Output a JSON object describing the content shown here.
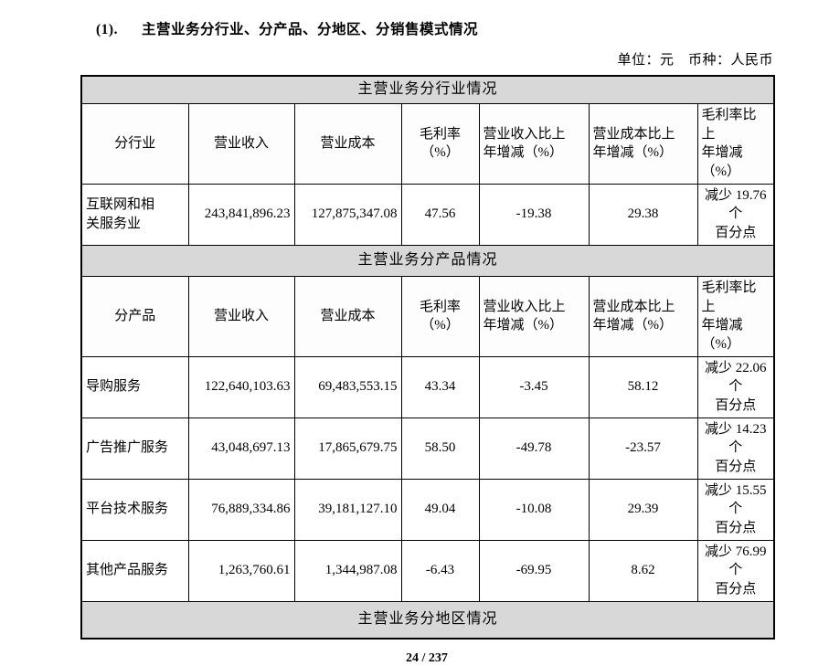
{
  "document": {
    "heading_index": "(1).",
    "heading_text": "主营业务分行业、分产品、分地区、分销售模式情况",
    "unit_note": "单位：元　币种：人民币",
    "page_number": "24 / 237"
  },
  "table": {
    "sections": [
      {
        "band": "主营业务分行业情况",
        "headers": [
          "分行业",
          "营业收入",
          "营业成本",
          "毛利率\n（%）",
          "营业收入比上\n年增减（%）",
          "营业成本比上\n年增减（%）",
          "毛利率比上\n年增减（%）"
        ],
        "rows": [
          [
            "互联网和相\n关服务业",
            "243,841,896.23",
            "127,875,347.08",
            "47.56",
            "-19.38",
            "29.38",
            "减少 19.76 个\n百分点"
          ]
        ]
      },
      {
        "band": "主营业务分产品情况",
        "headers": [
          "分产品",
          "营业收入",
          "营业成本",
          "毛利率\n（%）",
          "营业收入比上\n年增减（%）",
          "营业成本比上\n年增减（%）",
          "毛利率比上\n年增减（%）"
        ],
        "rows": [
          [
            "导购服务",
            "122,640,103.63",
            "69,483,553.15",
            "43.34",
            "-3.45",
            "58.12",
            "减少 22.06 个\n百分点"
          ],
          [
            "广告推广服务",
            "43,048,697.13",
            "17,865,679.75",
            "58.50",
            "-49.78",
            "-23.57",
            "减少 14.23 个\n百分点"
          ],
          [
            "平台技术服务",
            "76,889,334.86",
            "39,181,127.10",
            "49.04",
            "-10.08",
            "29.39",
            "减少 15.55 个\n百分点"
          ],
          [
            "其他产品服务",
            "1,263,760.61",
            "1,344,987.08",
            "-6.43",
            "-69.95",
            "8.62",
            "减少 76.99 个\n百分点"
          ]
        ]
      },
      {
        "band": "主营业务分地区情况",
        "headers": null,
        "rows": []
      }
    ]
  },
  "colors": {
    "band_background": "#d8d8d8",
    "border": "#000000",
    "text": "#000000"
  }
}
